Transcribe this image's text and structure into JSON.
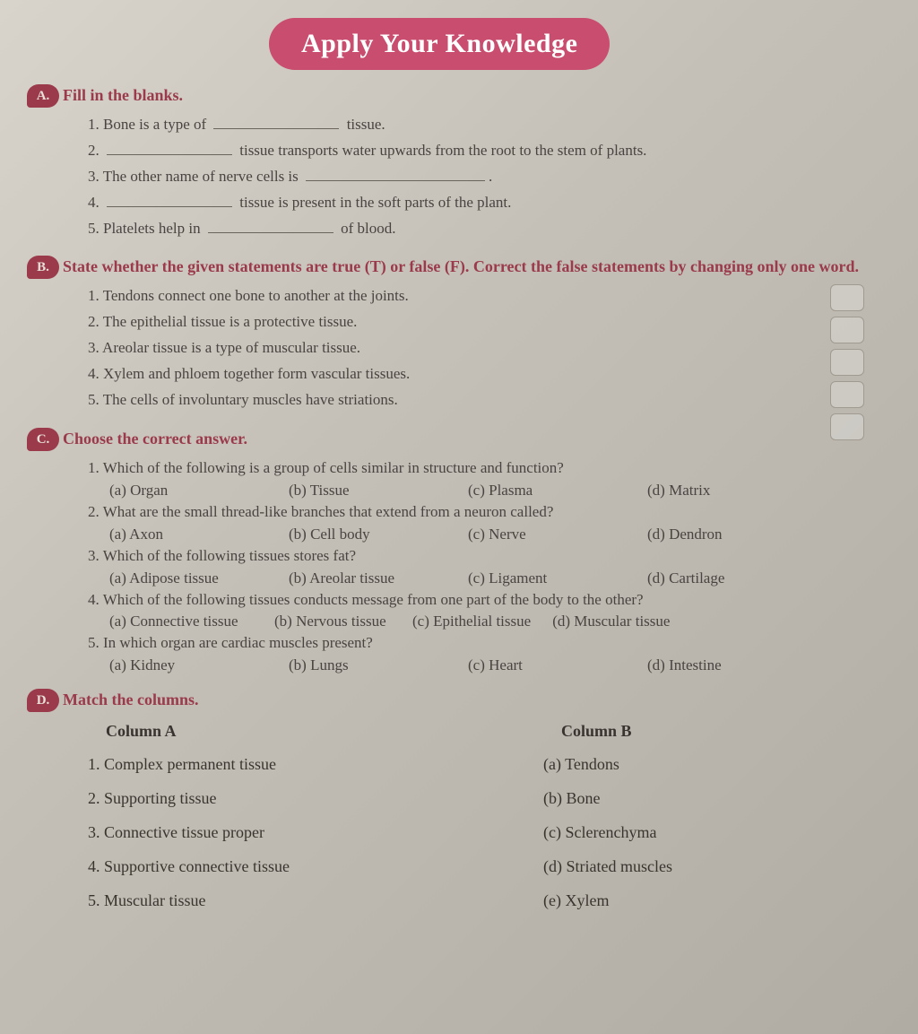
{
  "title": "Apply Your Knowledge",
  "sectionA": {
    "badge": "A.",
    "title": "Fill in the blanks.",
    "items": {
      "i1_pre": "1.  Bone is a type of",
      "i1_post": "tissue.",
      "i2_pre": "2.",
      "i2_post": "tissue transports water upwards from the root to the stem of plants.",
      "i3_pre": "3.  The other name of nerve cells is",
      "i4_pre": "4.",
      "i4_post": "tissue is present in the soft parts of the plant.",
      "i5_pre": "5.  Platelets help in",
      "i5_post": "of blood."
    }
  },
  "sectionB": {
    "badge": "B.",
    "title": "State whether the given statements are true (T) or false (F). Correct the false statements by changing only one word.",
    "items": [
      "1.  Tendons connect one bone to another at the joints.",
      "2.  The epithelial tissue is a protective tissue.",
      "3.  Areolar tissue is a type of muscular tissue.",
      "4.  Xylem and phloem together form vascular tissues.",
      "5.  The cells of involuntary muscles have striations."
    ]
  },
  "sectionC": {
    "badge": "C.",
    "title": "Choose the correct answer.",
    "q1": {
      "q": "1.  Which of the following is a group of cells similar in structure and function?",
      "a": "(a)  Organ",
      "b": "(b)  Tissue",
      "c": "(c)  Plasma",
      "d": "(d)  Matrix"
    },
    "q2": {
      "q": "2.  What are the small thread-like branches that extend from a neuron called?",
      "a": "(a)  Axon",
      "b": "(b)  Cell body",
      "c": "(c)  Nerve",
      "d": "(d)  Dendron"
    },
    "q3": {
      "q": "3.  Which of the following tissues stores fat?",
      "a": "(a)  Adipose tissue",
      "b": "(b)  Areolar tissue",
      "c": "(c)  Ligament",
      "d": "(d)  Cartilage"
    },
    "q4": {
      "q": "4.  Which of the following tissues conducts message from one part of the body to the other?",
      "a": "(a)  Connective tissue",
      "b": "(b)  Nervous tissue",
      "c": "(c)  Epithelial tissue",
      "d": "(d)  Muscular tissue"
    },
    "q5": {
      "q": "5.  In which organ are cardiac muscles present?",
      "a": "(a)  Kidney",
      "b": "(b)  Lungs",
      "c": "(c)  Heart",
      "d": "(d)  Intestine"
    }
  },
  "sectionD": {
    "badge": "D.",
    "title": "Match the columns.",
    "colA_head": "Column A",
    "colB_head": "Column B",
    "colA": [
      "1.  Complex permanent tissue",
      "2.  Supporting tissue",
      "3.  Connective tissue proper",
      "4.  Supportive connective tissue",
      "5.  Muscular tissue"
    ],
    "colB": [
      "(a)  Tendons",
      "(b)  Bone",
      "(c)  Sclerenchyma",
      "(d)  Striated muscles",
      "(e)  Xylem"
    ]
  }
}
